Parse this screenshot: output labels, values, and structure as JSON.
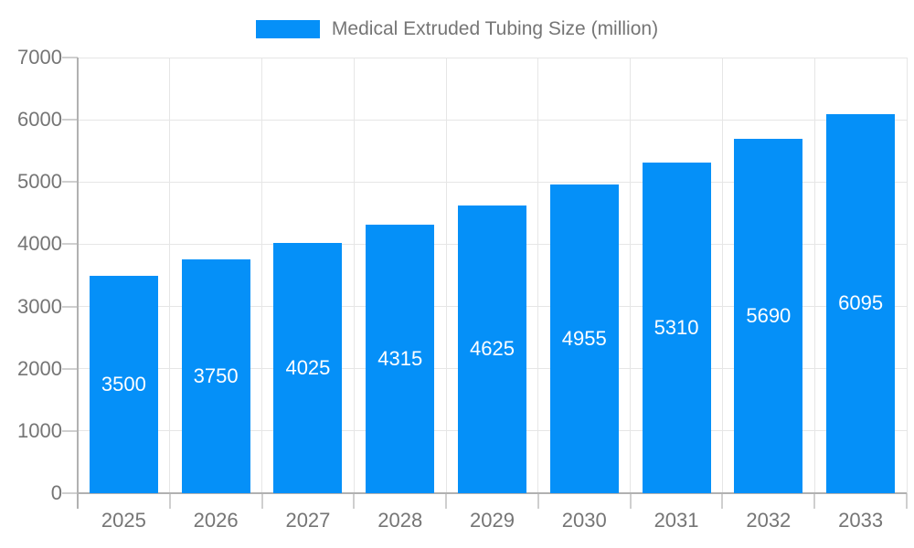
{
  "chart_data": {
    "type": "bar",
    "title": "Medical Extruded Tubing Size (million)",
    "legend_position": "top",
    "grid": true,
    "categories": [
      "2025",
      "2026",
      "2027",
      "2028",
      "2029",
      "2030",
      "2031",
      "2032",
      "2033"
    ],
    "series": [
      {
        "name": "Medical Extruded Tubing Size (million)",
        "values": [
          3500,
          3750,
          4025,
          4315,
          4625,
          4955,
          5310,
          5690,
          6095
        ]
      }
    ],
    "xlabel": "",
    "ylabel": "",
    "ylim": [
      0,
      7000
    ],
    "yticks": [
      0,
      1000,
      2000,
      3000,
      4000,
      5000,
      6000,
      7000
    ],
    "colors": {
      "bar": "#0590f8",
      "bar_value_label": "#ffffff",
      "axis_text": "#757575",
      "grid_line": "#e6e6e6",
      "axis_line": "#b1b1b1",
      "tick_mark": "#cfcfcf",
      "background": "#ffffff"
    }
  }
}
